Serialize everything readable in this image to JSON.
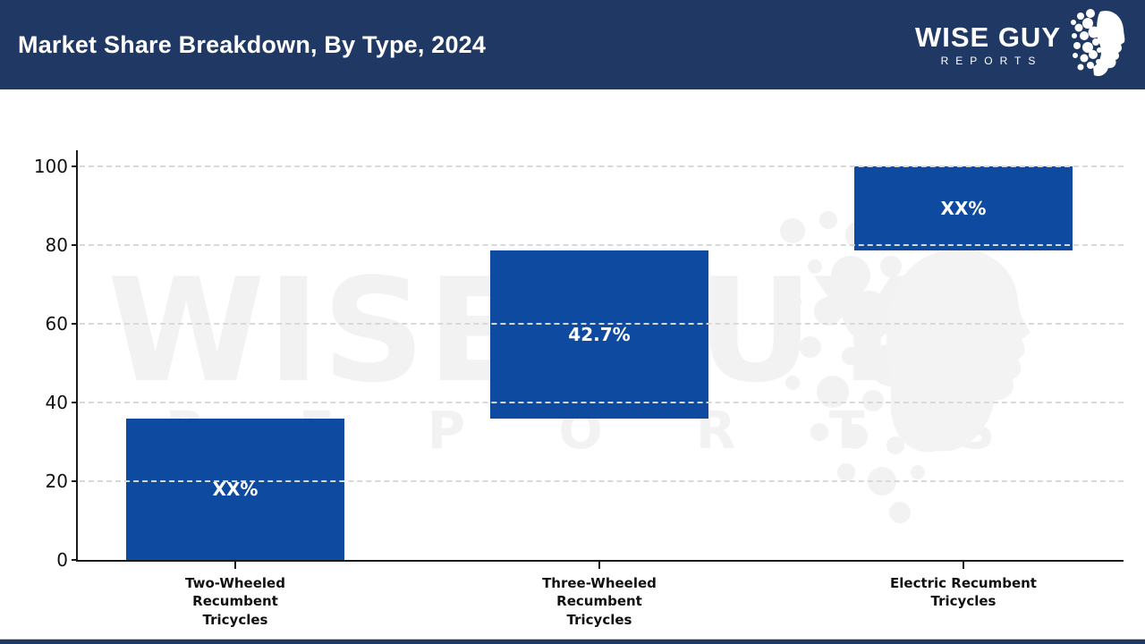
{
  "header": {
    "title": "Market Share Breakdown, By Type, 2024",
    "logo": {
      "wordmark": "WISE GUY",
      "subtext": "REPORTS"
    }
  },
  "watermark": {
    "wordmark": "WISE GUY",
    "subtext": "R E P O R T S"
  },
  "colors": {
    "header_bg": "#203864",
    "footer_bg": "#203864",
    "bar": "#0d4aa0",
    "grid": "#d9d9d9",
    "axis": "#1a1a1a",
    "watermark": "#f2f2f2",
    "bar_label": "#ffffff"
  },
  "chart_data": {
    "type": "bar",
    "subtype": "waterfall",
    "title": "Market Share Breakdown, By Type, 2024",
    "categories": [
      "Two-Wheeled Recumbent Tricycles",
      "Three-Wheeled Recumbent Tricycles",
      "Electric Recumbent Tricycles"
    ],
    "category_lines": [
      [
        "Two-Wheeled",
        "Recumbent",
        "Tricycles"
      ],
      [
        "Three-Wheeled",
        "Recumbent",
        "Tricycles"
      ],
      [
        "Electric Recumbent",
        "Tricycles"
      ]
    ],
    "segments": [
      {
        "category": "Two-Wheeled Recumbent Tricycles",
        "start": 0,
        "end": 36,
        "label": "XX%"
      },
      {
        "category": "Three-Wheeled Recumbent Tricycles",
        "start": 36,
        "end": 78.7,
        "label": "42.7%",
        "value": 42.7
      },
      {
        "category": "Electric Recumbent Tricycles",
        "start": 78.7,
        "end": 100,
        "label": "XX%"
      }
    ],
    "yticks": [
      0,
      20,
      40,
      60,
      80,
      100
    ],
    "ylim": [
      0,
      100
    ],
    "xlabel": "",
    "ylabel": "",
    "grid": "horizontal dashed, drawn over bars",
    "legend": null
  }
}
